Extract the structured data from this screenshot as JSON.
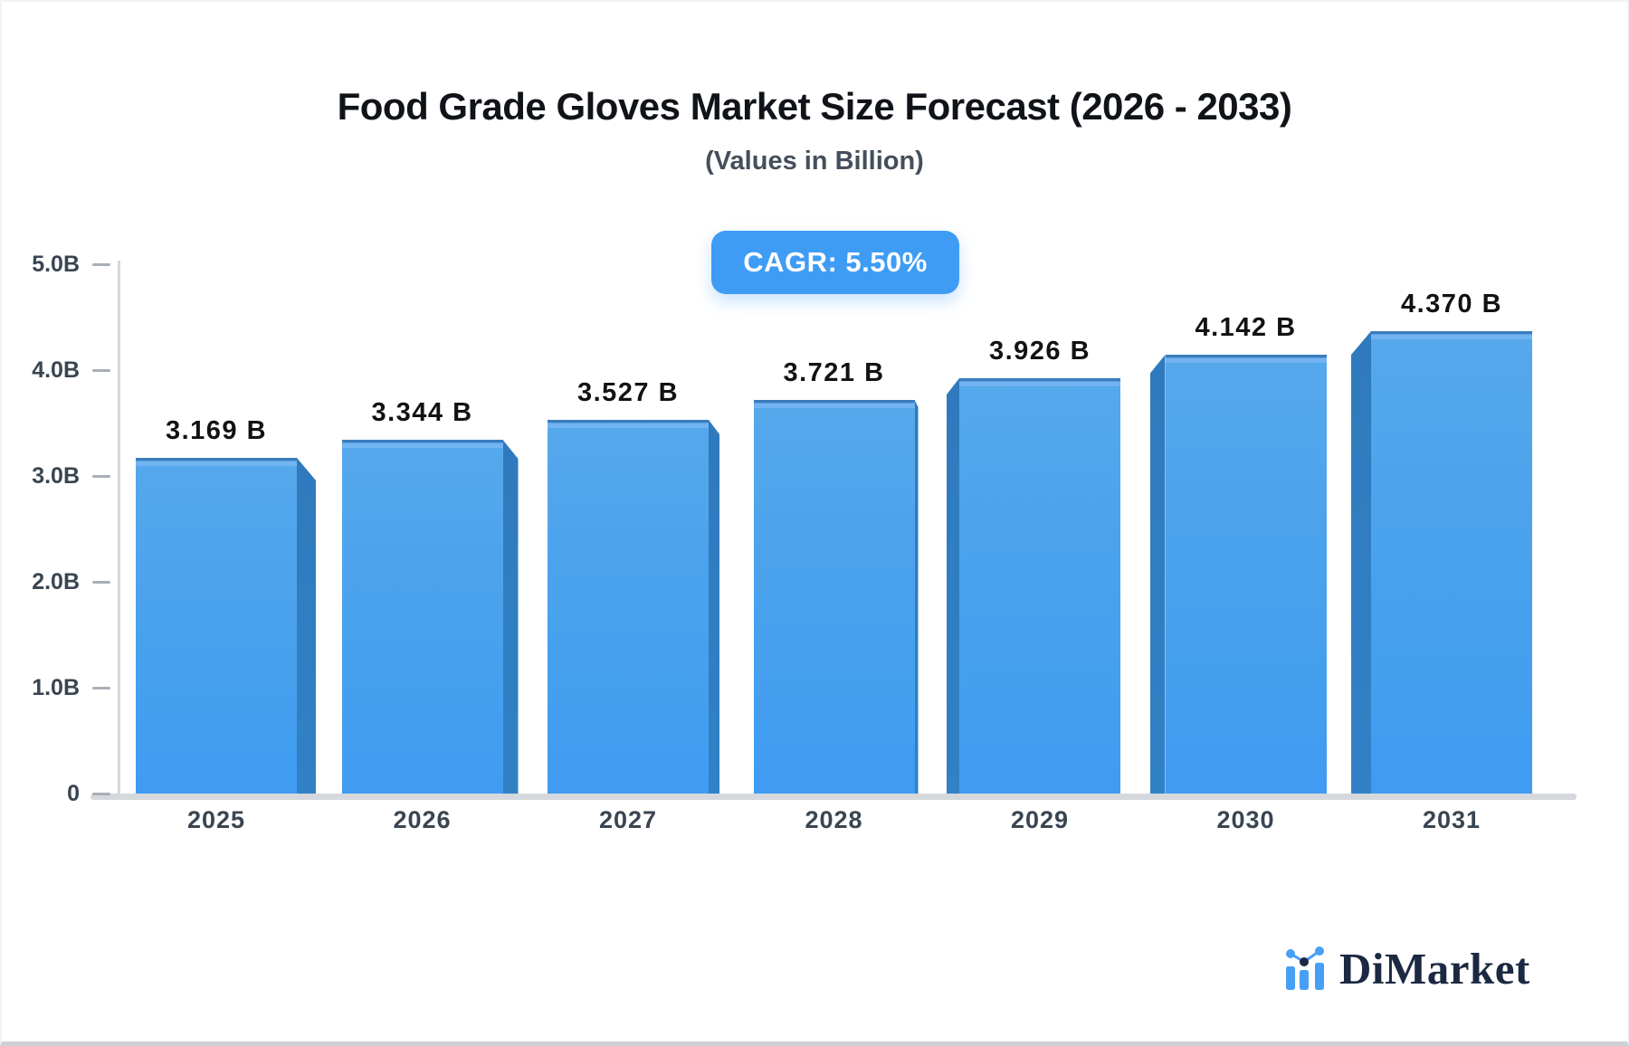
{
  "header": {
    "title": "Food Grade Gloves Market Size Forecast (2026 - 2033)",
    "subtitle": "(Values in Billion)",
    "cagr_label": "CAGR: 5.50%"
  },
  "chart_data": {
    "type": "bar",
    "title": "Food Grade Gloves Market Size Forecast (2026 - 2033)",
    "subtitle": "(Values in Billion)",
    "cagr": "5.50%",
    "categories": [
      "2025",
      "2026",
      "2027",
      "2028",
      "2029",
      "2030",
      "2031"
    ],
    "values": [
      3.169,
      3.344,
      3.527,
      3.721,
      3.926,
      4.142,
      4.37
    ],
    "value_labels": [
      "3.169 B",
      "3.344 B",
      "3.527 B",
      "3.721 B",
      "3.926 B",
      "4.142 B",
      "4.370 B"
    ],
    "y_ticks": [
      "0",
      "1.0B",
      "2.0B",
      "3.0B",
      "4.0B",
      "5.0B"
    ],
    "ylim": [
      0,
      5
    ],
    "xlabel": "",
    "ylabel": "",
    "grid": false,
    "legend": "none",
    "bar_style": "3d-bevel"
  },
  "logo": {
    "text": "DiMarket",
    "icon": "mini-bar-chart-icon"
  },
  "colors": {
    "bar_face_top": "#56a8eb",
    "bar_face_mid": "#48a1ed",
    "bar_face_bottom": "#3f9cf2",
    "bar_side": "#2f7abd",
    "bar_cap_highlight": "#72b4f1",
    "bar_cap_line": "#3a7dbd",
    "badge_bg": "#3e9cf5",
    "badge_text": "#ffffff",
    "axis_line": "#d5d8dc",
    "tick_mark": "#a9afb6",
    "axis_label": "#3a4552",
    "value_label": "#101213",
    "title_text": "#101318",
    "subtitle_text": "#454f5c",
    "logo_navy": "#1b2942",
    "logo_blue": "#47a0f6"
  }
}
